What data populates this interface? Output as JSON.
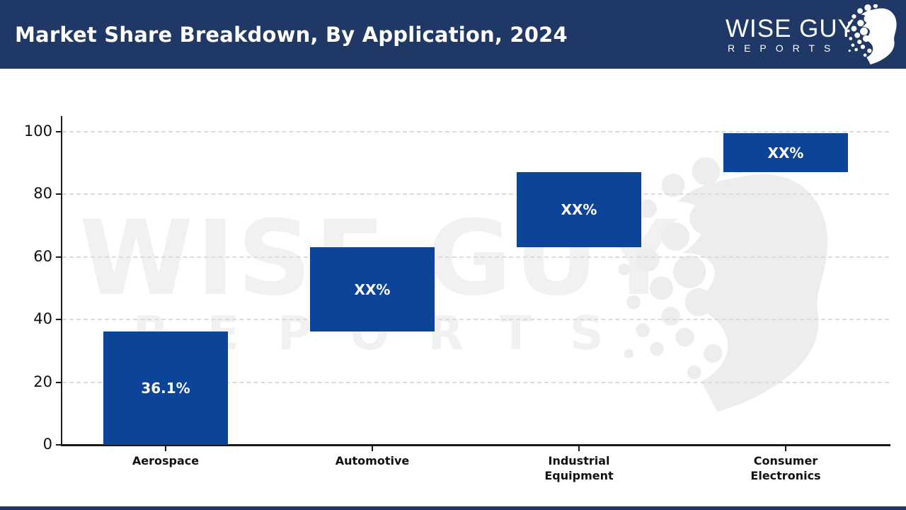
{
  "header": {
    "title": "Market Share Breakdown, By Application, 2024",
    "logo_line1": "WISE GUY",
    "logo_line2": "REPORTS",
    "bg_color": "#1f3865"
  },
  "watermark": {
    "line1": "WISE GUY",
    "line2": "REPORTS"
  },
  "chart_data": {
    "type": "bar",
    "variant": "floating-segment",
    "title": "Market Share Breakdown, By Application, 2024",
    "categories": [
      "Aerospace",
      "Automotive",
      "Industrial\nEquipment",
      "Consumer\nElectronics"
    ],
    "segments": [
      {
        "category": "Aerospace",
        "start": 0,
        "end": 36.1,
        "label": "36.1%"
      },
      {
        "category": "Automotive",
        "start": 36.1,
        "end": 63.1,
        "label": "XX%"
      },
      {
        "category": "Industrial Equipment",
        "start": 63.1,
        "end": 87.0,
        "label": "XX%"
      },
      {
        "category": "Consumer Electronics",
        "start": 87.0,
        "end": 99.6,
        "label": "XX%"
      }
    ],
    "yticks": [
      0,
      20,
      40,
      60,
      80,
      100
    ],
    "ylim": [
      0,
      104
    ],
    "xlabel": "",
    "ylabel": "",
    "grid": "horizontal-dashed",
    "grid_color": "#dcdcdc",
    "bar_color": "#0b4499",
    "bar_label_color": "#ffffff",
    "axis_color": "#1a1a1a"
  }
}
